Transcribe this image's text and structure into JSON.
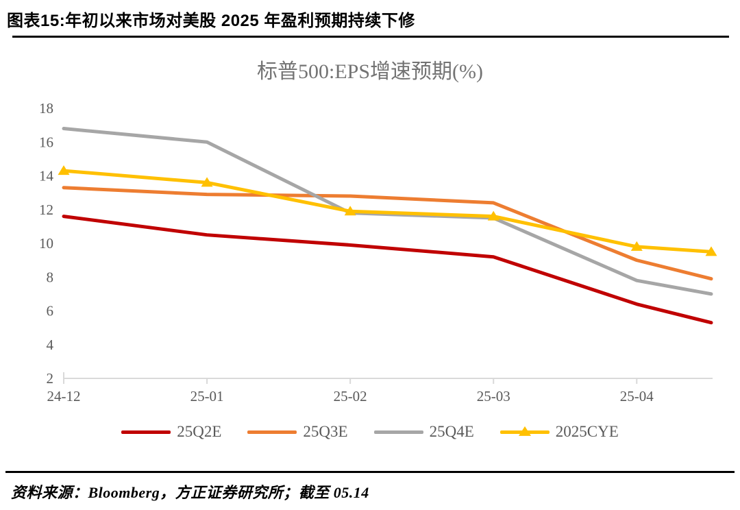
{
  "header": {
    "title": "图表15:年初以来市场对美股 2025 年盈利预期持续下修"
  },
  "chart_data": {
    "type": "line",
    "title": "标普500:EPS增速预期(%)",
    "categories": [
      "24-12",
      "25-01",
      "25-02",
      "25-03",
      "25-04"
    ],
    "x": [
      0,
      1,
      2,
      3,
      4,
      4.52
    ],
    "x_note": "monthly points Dec-2024 through Apr-2025 plus final reading at 2025-05-14",
    "ylim": [
      2,
      18
    ],
    "ytick_step": 2,
    "grid": false,
    "legend_position": "bottom",
    "axis_color": "#D9D9D9",
    "label_color": "#595959",
    "series": [
      {
        "name": "25Q2E",
        "color": "#C00000",
        "marker": "none",
        "values": [
          11.6,
          10.5,
          9.9,
          9.2,
          6.4,
          5.3
        ]
      },
      {
        "name": "25Q3E",
        "color": "#ED7D31",
        "marker": "none",
        "values": [
          13.3,
          12.9,
          12.8,
          12.4,
          9.0,
          7.9
        ]
      },
      {
        "name": "25Q4E",
        "color": "#A6A6A6",
        "marker": "none",
        "values": [
          16.8,
          16.0,
          11.8,
          11.5,
          7.8,
          7.0
        ]
      },
      {
        "name": "2025CYE",
        "color": "#FFC000",
        "marker": "triangle",
        "values": [
          14.3,
          13.6,
          11.9,
          11.6,
          9.8,
          9.5
        ]
      }
    ]
  },
  "footer": {
    "source": "资料来源：Bloomberg，方正证券研究所；截至 05.14"
  }
}
